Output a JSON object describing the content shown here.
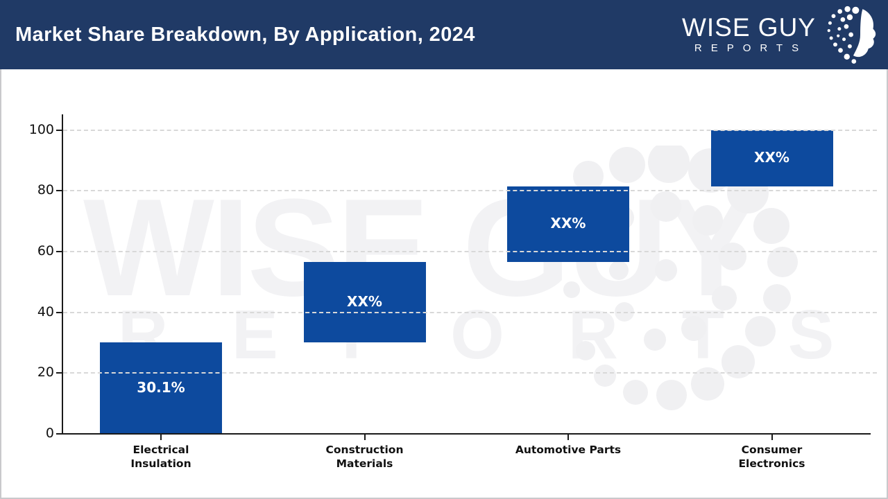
{
  "header": {
    "title": "Market Share Breakdown, By Application, 2024",
    "logo": {
      "brand": "WISE GUY",
      "sub": "REPORTS",
      "icon": "dotted-head-profile-icon"
    }
  },
  "watermark": {
    "line1": "WISE GUY",
    "line2": "R E P O R T S",
    "icon": "dotted-head-profile-icon"
  },
  "colors": {
    "header_bg": "#203a66",
    "bar": "#0d4a9e",
    "grid": "#d8d8d8",
    "axis": "#1a1a1a",
    "watermark": "#f2f2f4",
    "bar_label_text": "#ffffff",
    "tick_text": "#111111"
  },
  "chart_data": {
    "type": "bar",
    "subtype": "waterfall-style stacked segments, one floating bar per category",
    "title": "Market Share Breakdown, By Application, 2024",
    "xlabel": "",
    "ylabel": "",
    "categories": [
      "Electrical Insulation",
      "Construction Materials",
      "Automotive Parts",
      "Consumer Electronics"
    ],
    "category_lines": [
      [
        "Electrical",
        "Insulation"
      ],
      [
        "Construction",
        "Materials"
      ],
      [
        "Automotive Parts"
      ],
      [
        "Consumer",
        "Electronics"
      ]
    ],
    "series": [
      {
        "name": "Market Share %",
        "segments": [
          {
            "category": "Electrical Insulation",
            "start": 0,
            "end": 30.1,
            "label": "30.1%"
          },
          {
            "category": "Construction Materials",
            "start": 30.1,
            "end": 56.6,
            "label": "XX%"
          },
          {
            "category": "Automotive Parts",
            "start": 56.6,
            "end": 81.4,
            "label": "XX%"
          },
          {
            "category": "Consumer Electronics",
            "start": 81.4,
            "end": 100,
            "label": "XX%"
          }
        ]
      }
    ],
    "ylim": [
      0,
      105
    ],
    "yticks": [
      0,
      20,
      40,
      60,
      80,
      100
    ],
    "grid": "horizontal dashed gridlines drawn above bars",
    "legend": "none"
  }
}
